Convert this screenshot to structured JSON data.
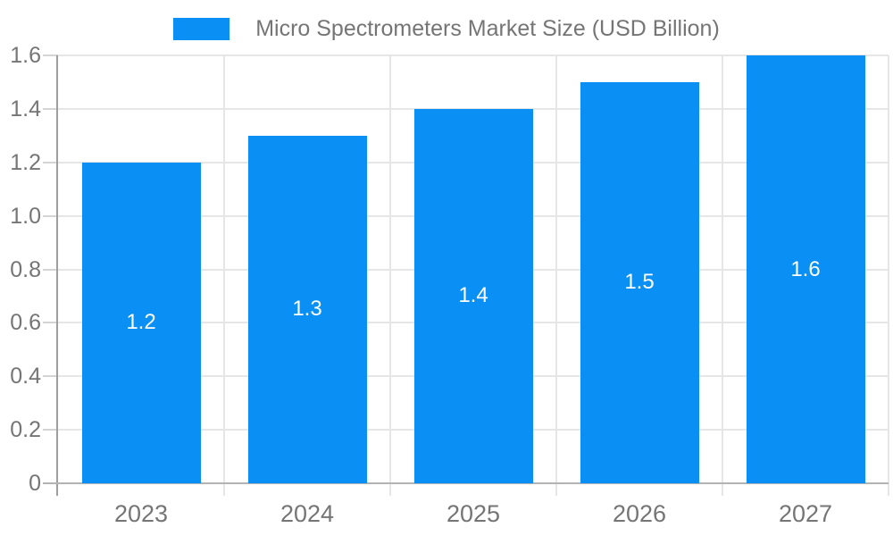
{
  "chart_data": {
    "type": "bar",
    "title": "",
    "legend": {
      "label": "Micro Spectrometers Market Size (USD Billion)",
      "position": "top"
    },
    "categories": [
      "2023",
      "2024",
      "2025",
      "2026",
      "2027"
    ],
    "values": [
      1.2,
      1.3,
      1.4,
      1.5,
      1.6
    ],
    "bar_labels": [
      "1.2",
      "1.3",
      "1.4",
      "1.5",
      "1.6"
    ],
    "xlabel": "",
    "ylabel": "",
    "ylim": [
      0,
      1.6
    ],
    "yticks": [
      {
        "value": 0.0,
        "label": "0"
      },
      {
        "value": 0.2,
        "label": "0.2"
      },
      {
        "value": 0.4,
        "label": "0.4"
      },
      {
        "value": 0.6,
        "label": "0.6"
      },
      {
        "value": 0.8,
        "label": "0.8"
      },
      {
        "value": 1.0,
        "label": "1.0"
      },
      {
        "value": 1.2,
        "label": "1.2"
      },
      {
        "value": 1.4,
        "label": "1.4"
      },
      {
        "value": 1.6,
        "label": "1.6"
      }
    ],
    "grid": true,
    "legend_position": "top",
    "colors": {
      "bar": "#0a90f5",
      "grid": "#e6e6e6",
      "tick": "#d4d4d4",
      "axis": "#9e9e9e",
      "baseline": "#b3b3b3",
      "label_text": "#757575",
      "bar_label_text": "#ffffff",
      "background": "#ffffff"
    }
  }
}
